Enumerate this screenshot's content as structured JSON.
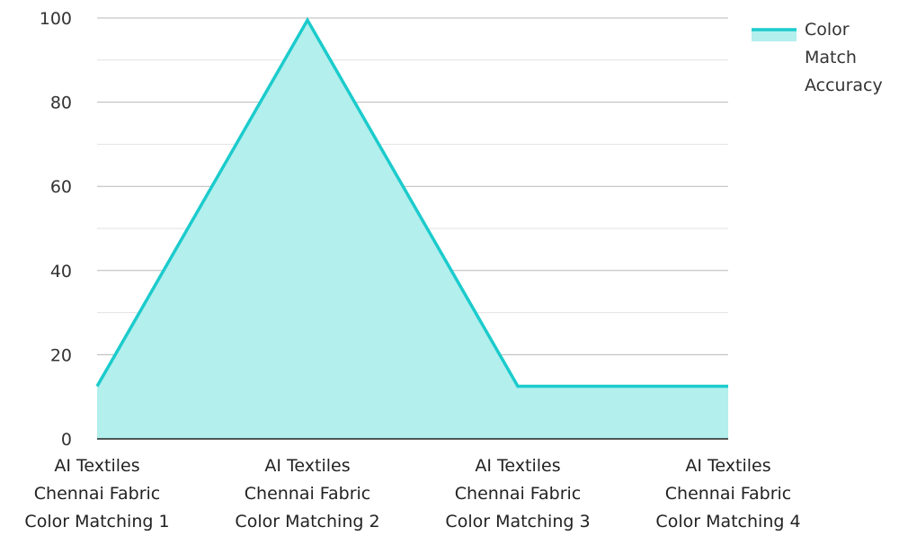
{
  "chart_data": {
    "type": "area",
    "categories": [
      [
        "AI Textiles",
        "Chennai Fabric",
        "Color Matching 1"
      ],
      [
        "AI Textiles",
        "Chennai Fabric",
        "Color Matching 2"
      ],
      [
        "AI Textiles",
        "Chennai Fabric",
        "Color Matching 3"
      ],
      [
        "AI Textiles",
        "Chennai Fabric",
        "Color Matching 4"
      ]
    ],
    "series": [
      {
        "name": [
          "Color",
          "Match",
          "Accuracy"
        ],
        "values": [
          12.5,
          99.5,
          12.5,
          12.5
        ],
        "line_color": "#1ccbcc",
        "fill_color": "#b2efed"
      }
    ],
    "ylim": [
      0,
      100
    ],
    "yticks": [
      0,
      20,
      40,
      60,
      80,
      100
    ],
    "minor_grid": [
      10,
      30,
      50,
      70,
      90
    ],
    "grid": true,
    "legend": "top-right",
    "colors": {
      "major_grid": "#b8b8b8",
      "minor_grid": "#e2e2e2",
      "axis": "#222222"
    }
  }
}
